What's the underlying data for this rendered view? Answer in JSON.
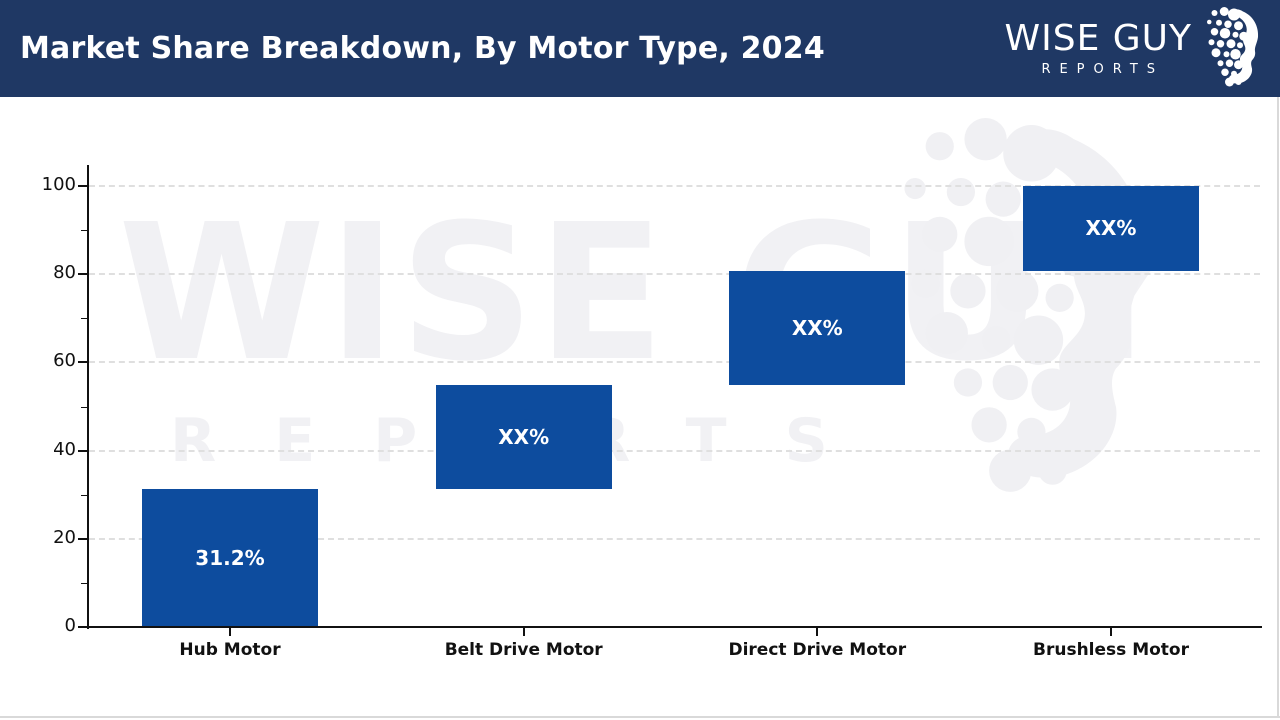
{
  "header": {
    "title": "Market Share Breakdown, By Motor Type, 2024",
    "logo": {
      "line1": "WISE GUY",
      "line2": "REPORTS"
    },
    "bg_color": "#1f3864"
  },
  "watermark": {
    "line1": "WISE GUY",
    "line2": "REPORTS"
  },
  "chart_data": {
    "type": "bar",
    "subtype": "waterfall",
    "title": "Market Share Breakdown, By Motor Type, 2024",
    "categories": [
      "Hub Motor",
      "Belt Drive Motor",
      "Direct Drive Motor",
      "Brushless Motor"
    ],
    "segments": [
      {
        "category": "Hub Motor",
        "start": 0,
        "end": 31.2,
        "label": "31.2%"
      },
      {
        "category": "Belt Drive Motor",
        "start": 31.2,
        "end": 54.8,
        "label": "XX%"
      },
      {
        "category": "Direct Drive Motor",
        "start": 54.8,
        "end": 80.8,
        "label": "XX%"
      },
      {
        "category": "Brushless Motor",
        "start": 80.8,
        "end": 100,
        "label": "XX%"
      }
    ],
    "xlabel": "",
    "ylabel": "",
    "ylim": [
      0,
      100
    ],
    "yticks": [
      0,
      20,
      40,
      60,
      80,
      100
    ],
    "grid": "horizontal dashed",
    "legend": "none",
    "bar_color": "#0d4c9e",
    "bar_label_color": "#ffffff",
    "axis_color": "#111111",
    "grid_color": "#dfdfdf"
  }
}
